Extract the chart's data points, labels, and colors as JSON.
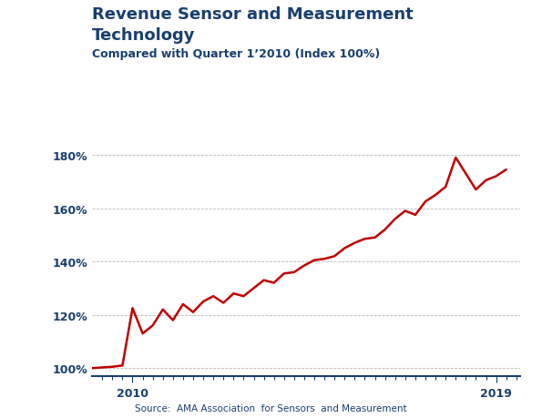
{
  "title_line1": "Revenue Sensor and Measurement",
  "title_line2": "Technology",
  "subtitle": "Compared with Quarter 1’2010 (Index 100%)",
  "title_color": "#1a3f6f",
  "subtitle_color": "#1a3f6f",
  "line_color": "#c00000",
  "axis_color": "#1a3f6f",
  "grid_color": "#b0b0b0",
  "background_color": "#ffffff",
  "source_text": "Source:  AMA Association  for Sensors  and Measurement",
  "source_color": "#1a3f6f",
  "ylim": [
    97,
    185
  ],
  "yticks": [
    100,
    120,
    140,
    160,
    180
  ],
  "ytick_labels": [
    "100%",
    "120%",
    "140%",
    "160%",
    "180%"
  ],
  "xlim": [
    2009.0,
    2019.6
  ],
  "data_x": [
    2009.0,
    2009.5,
    2009.75,
    2010.0,
    2010.25,
    2010.5,
    2010.75,
    2011.0,
    2011.25,
    2011.5,
    2011.75,
    2012.0,
    2012.25,
    2012.5,
    2012.75,
    2013.0,
    2013.25,
    2013.5,
    2013.75,
    2014.0,
    2014.25,
    2014.5,
    2014.75,
    2015.0,
    2015.25,
    2015.5,
    2015.75,
    2016.0,
    2016.25,
    2016.5,
    2016.75,
    2017.0,
    2017.25,
    2017.5,
    2017.75,
    2018.0,
    2018.25,
    2018.5,
    2018.75,
    2019.0,
    2019.25
  ],
  "data_y": [
    100.0,
    100.5,
    101.0,
    122.5,
    113.0,
    116.0,
    122.0,
    118.0,
    124.0,
    121.0,
    125.0,
    127.0,
    124.5,
    128.0,
    127.0,
    130.0,
    133.0,
    132.0,
    135.5,
    136.0,
    138.5,
    140.5,
    141.0,
    142.0,
    145.0,
    147.0,
    148.5,
    149.0,
    152.0,
    156.0,
    159.0,
    157.5,
    162.5,
    165.0,
    168.0,
    179.0,
    173.0,
    167.0,
    170.5,
    172.0,
    174.5
  ],
  "title_fontsize": 13,
  "subtitle_fontsize": 9,
  "tick_label_fontsize": 9,
  "source_fontsize": 7.5
}
